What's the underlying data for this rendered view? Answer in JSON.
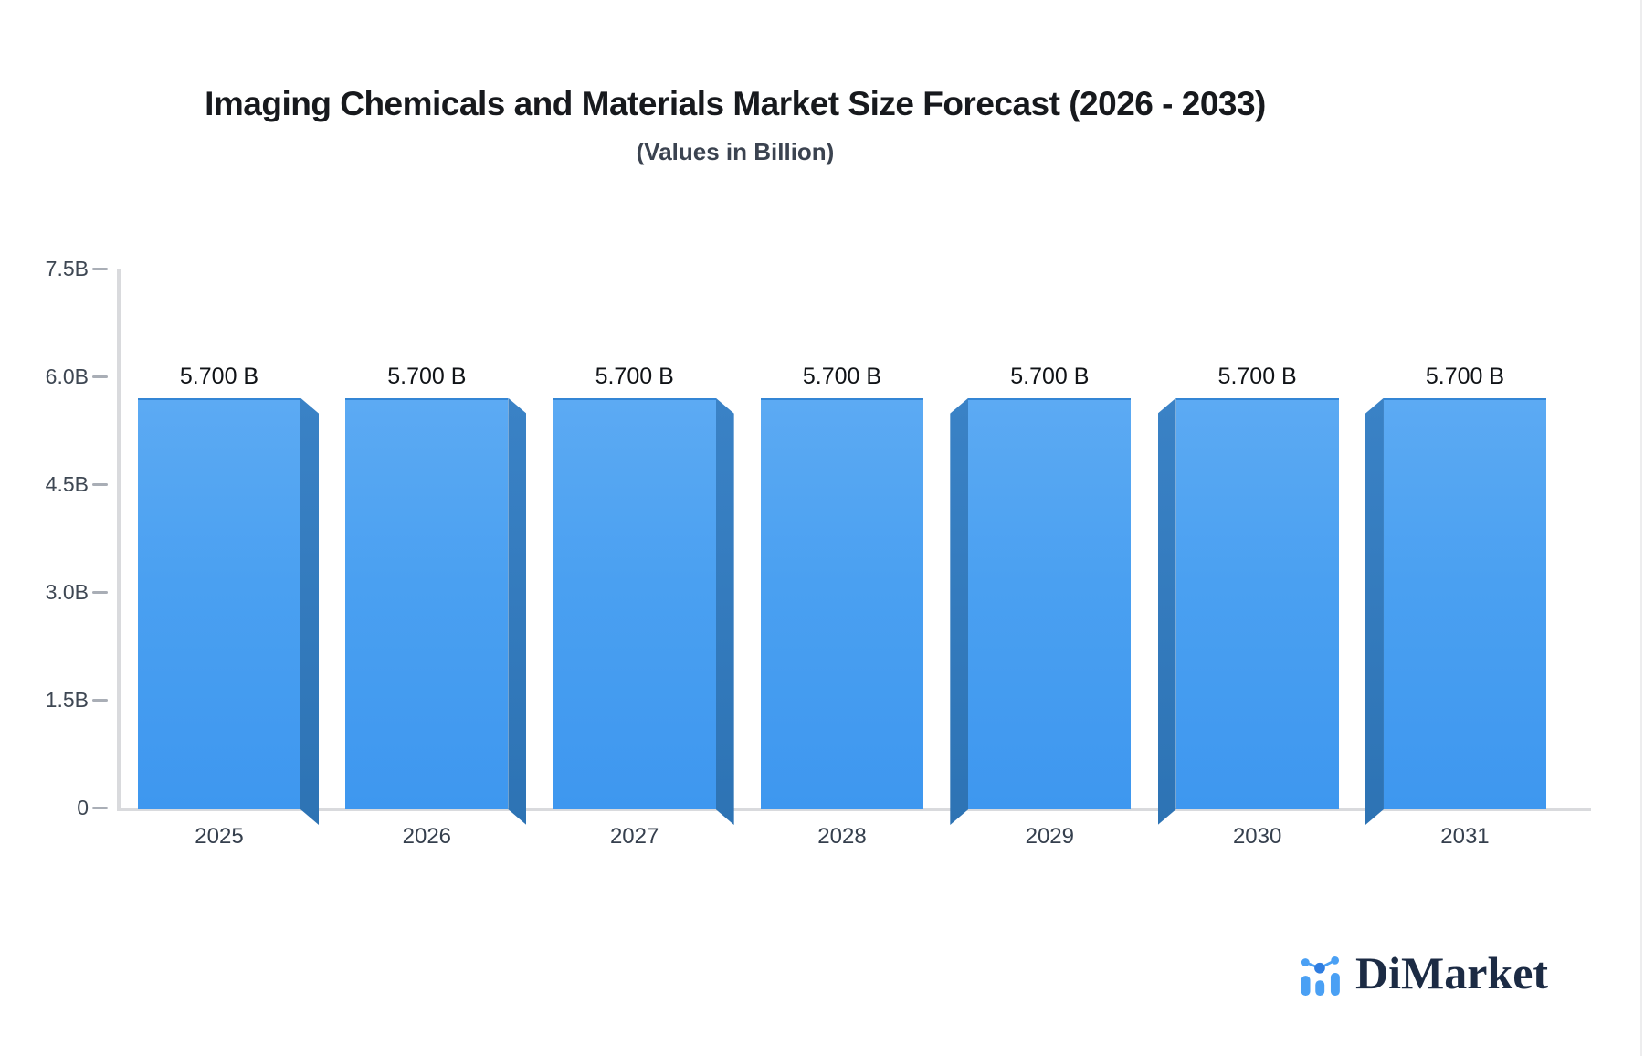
{
  "header": {
    "title": "Imaging Chemicals and Materials Market Size Forecast (2026 - 2033)",
    "subtitle": "(Values in Billion)"
  },
  "chart_data": {
    "type": "bar",
    "categories": [
      "2025",
      "2026",
      "2027",
      "2028",
      "2029",
      "2030",
      "2031"
    ],
    "values": [
      5.7,
      5.7,
      5.7,
      5.7,
      5.7,
      5.7,
      5.7
    ],
    "value_labels": [
      "5.700 B",
      "5.700 B",
      "5.700 B",
      "5.700 B",
      "5.700 B",
      "5.700 B",
      "5.700 B"
    ],
    "title": "Imaging Chemicals and Materials Market Size Forecast (2026 - 2033)",
    "subtitle": "(Values in Billion)",
    "xlabel": "",
    "ylabel": "",
    "ylim": [
      0,
      7.5
    ],
    "y_ticks": [
      {
        "label": "7.5B",
        "value": 7.5
      },
      {
        "label": "6.0B",
        "value": 6.0
      },
      {
        "label": "4.5B",
        "value": 4.5
      },
      {
        "label": "3.0B",
        "value": 3.0
      },
      {
        "label": "1.5B",
        "value": 1.5
      },
      {
        "label": "0",
        "value": 0
      }
    ],
    "grid": false,
    "legend": false,
    "colors": {
      "bar_fill_top": "#5caaf3",
      "bar_fill_bottom": "#3e97ef",
      "bar_side": "#2e78bd",
      "axis_line": "#d9dadd",
      "tick_text": "#3e4753",
      "value_text": "#101317"
    }
  },
  "branding": {
    "logo_text": "DiMarket",
    "logo_icon": "bar-chart-logo-icon",
    "logo_text_color": "#1c2b44",
    "logo_icon_color": "#4aa0f4"
  }
}
